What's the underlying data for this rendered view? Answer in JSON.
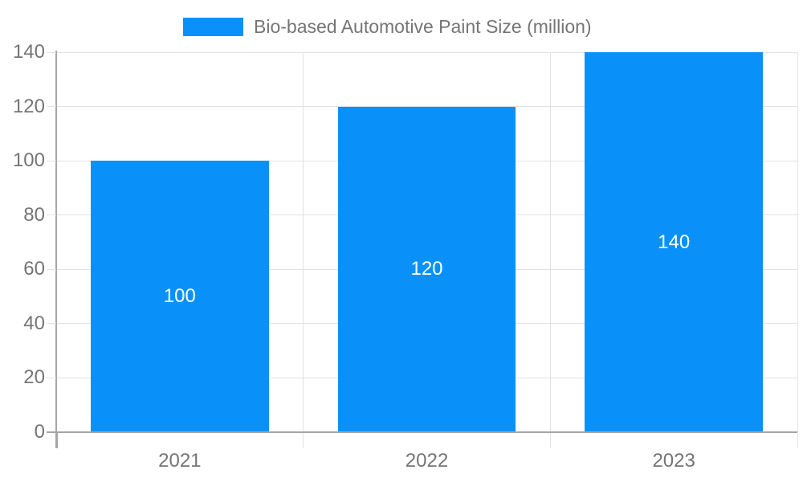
{
  "colors": {
    "bar": "#0991f9",
    "axis": "#a6a6a6",
    "grid": "#e2e2e2",
    "tick_text": "#757575",
    "value_label": "#ffffff",
    "background": "#ffffff"
  },
  "chart_data": {
    "type": "bar",
    "title": "",
    "categories": [
      "2021",
      "2022",
      "2023"
    ],
    "series": [
      {
        "name": "Bio-based Automotive Paint Size (million)",
        "values": [
          100,
          120,
          140
        ]
      }
    ],
    "bar_value_labels": [
      "100",
      "120",
      "140"
    ],
    "legend": {
      "label": "Bio-based Automotive Paint Size (million)",
      "position": "top",
      "swatch_color": "#0991f9"
    },
    "xlabel": "",
    "ylabel": "",
    "ylim": [
      0,
      140
    ],
    "y_ticks": [
      0,
      20,
      40,
      60,
      80,
      100,
      120,
      140
    ],
    "grid": true
  }
}
